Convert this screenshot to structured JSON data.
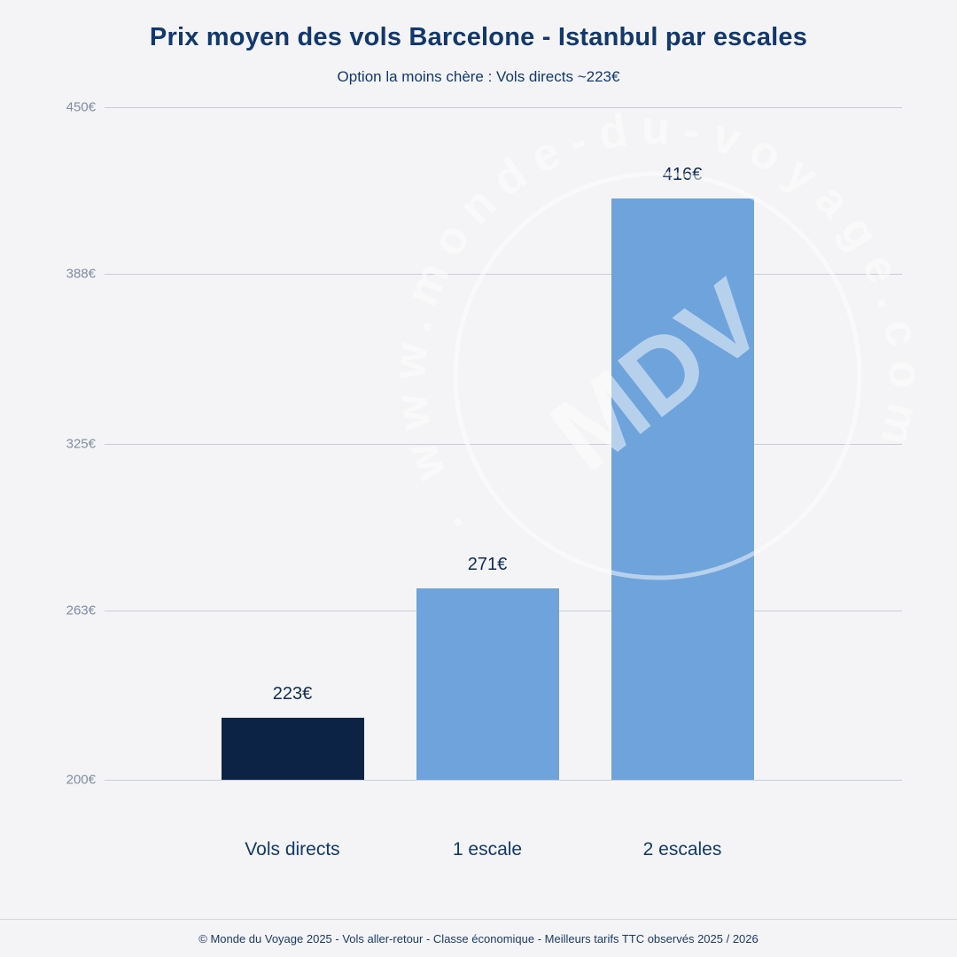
{
  "title": "Prix moyen des vols Barcelone - Istanbul par escales",
  "subtitle": "Option la moins chère : Vols directs ~223€",
  "watermark": {
    "text": "· www.monde-du-voyage.com",
    "center": "MDV"
  },
  "footer": {
    "text": "© Monde du Voyage 2025 - Vols aller-retour - Classe économique - Meilleurs tarifs TTC observés 2025 / 2026"
  },
  "chart_data": {
    "type": "bar",
    "title": "Prix moyen des vols Barcelone - Istanbul par escales",
    "subtitle": "Option la moins chère : Vols directs ~223€",
    "categories": [
      "Vols directs",
      "1 escale",
      "2 escales"
    ],
    "values": [
      223,
      271,
      416
    ],
    "value_labels": [
      "223€",
      "271€",
      "416€"
    ],
    "unit": "€",
    "ylim": [
      200,
      450
    ],
    "y_ticks": [
      450,
      388,
      325,
      263,
      200
    ],
    "y_tick_labels": [
      "450€",
      "388€",
      "325€",
      "263€",
      "200€"
    ],
    "grid": true,
    "legend": false,
    "bar_colors": [
      "#0d2345",
      "#6fa3db",
      "#6fa3db"
    ],
    "colors": {
      "background": "#f4f4f6",
      "title": "#12386d",
      "gridline": "#c7cdd9",
      "y_tick_label": "#7e8ca3",
      "value_label": "#102c55",
      "category_label": "#12386d",
      "bar_dark": "#0d2345",
      "bar_light": "#6fa3db"
    }
  }
}
